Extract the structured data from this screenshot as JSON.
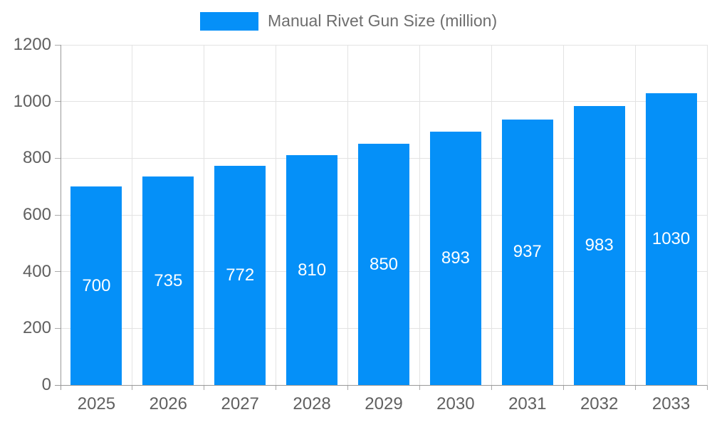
{
  "legend": {
    "label": "Manual Rivet Gun Size (million)"
  },
  "colors": {
    "bar": "#0590f8",
    "grid": "#e3e3e3",
    "axis": "#999999",
    "tick": "#aaaaaa",
    "tick_label": "#606060",
    "legend_text": "#6e6e6e",
    "bar_label": "#ffffff",
    "background": "#ffffff"
  },
  "chart_data": {
    "type": "bar",
    "title": "Manual Rivet Gun Size (million)",
    "categories": [
      "2025",
      "2026",
      "2027",
      "2028",
      "2029",
      "2030",
      "2031",
      "2032",
      "2033"
    ],
    "values": [
      700,
      735,
      772,
      810,
      850,
      893,
      937,
      983,
      1030
    ],
    "xlabel": "",
    "ylabel": "",
    "ylim": [
      0,
      1200
    ],
    "ytick_step": 200,
    "grid": true,
    "legend_position": "top-center",
    "bar_value_labels": "inside-center"
  }
}
